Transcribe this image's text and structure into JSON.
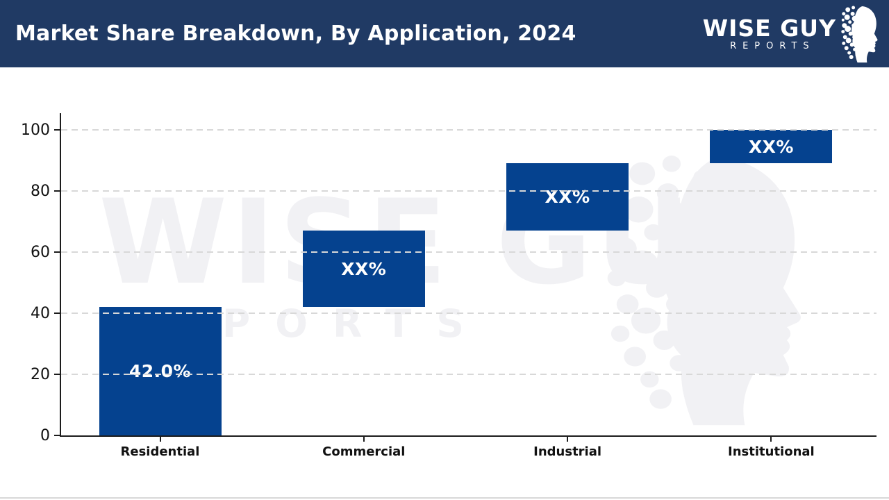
{
  "header": {
    "title": "Market Share Breakdown, By Application, 2024",
    "logo": {
      "wordmark": "WISE GUY",
      "subtitle": "REPORTS"
    }
  },
  "watermark": {
    "wordmark": "WISE GUY",
    "subtitle": "REPORTS"
  },
  "colors": {
    "header-bg": "#203a64",
    "title-text": "#ffffff",
    "bar-fill": "#05428f",
    "bar-label": "#ffffff",
    "gridline": "#d8d8d8",
    "axis": "#1c1c1c",
    "text": "#111111",
    "watermark-fill": "#f1f1f4"
  },
  "chart_data": {
    "type": "bar",
    "subtype": "waterfall",
    "title": "Market Share Breakdown, By Application, 2024",
    "categories": [
      "Residential",
      "Commercial",
      "Industrial",
      "Institutional"
    ],
    "series": [
      {
        "name": "Market share (%)",
        "segments": [
          {
            "category": "Residential",
            "from": 0,
            "to": 42,
            "label": "42.0%"
          },
          {
            "category": "Commercial",
            "from": 42,
            "to": 67,
            "label": "XX%"
          },
          {
            "category": "Industrial",
            "from": 67,
            "to": 89,
            "label": "XX%"
          },
          {
            "category": "Institutional",
            "from": 89,
            "to": 100,
            "label": "XX%"
          }
        ]
      }
    ],
    "xlabel": "",
    "ylabel": "",
    "ylim": [
      0,
      100
    ],
    "yticks": [
      0,
      20,
      40,
      60,
      80,
      100
    ],
    "grid": "horizontal-dashed",
    "legend": "none"
  }
}
